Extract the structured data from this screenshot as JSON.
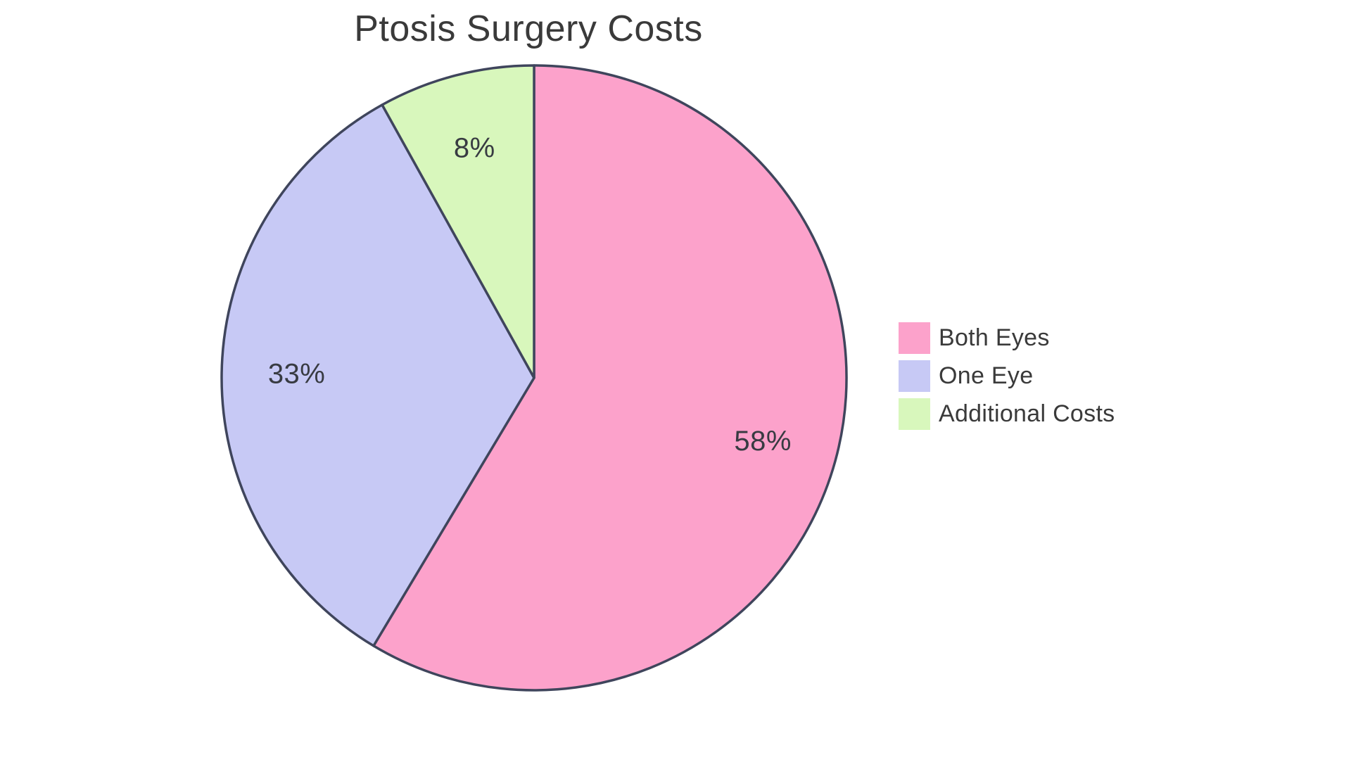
{
  "chart_data": {
    "type": "pie",
    "title": "Ptosis Surgery Costs",
    "labels": [
      "Both Eyes",
      "One Eye",
      "Additional Costs"
    ],
    "values": [
      58,
      33,
      8
    ],
    "slice_labels": [
      "58%",
      "33%",
      "8%"
    ],
    "colors": [
      "#FCA2CB",
      "#C7C9F5",
      "#D8F7BC"
    ],
    "outline_color": "#3F455C",
    "slice_label_color": "#383B42",
    "title_color": "#3A3A3A",
    "legend_text_color": "#3A3A3A",
    "legend_position": "right",
    "start_angle_deg": 0,
    "direction": "clockwise",
    "grid": false
  }
}
